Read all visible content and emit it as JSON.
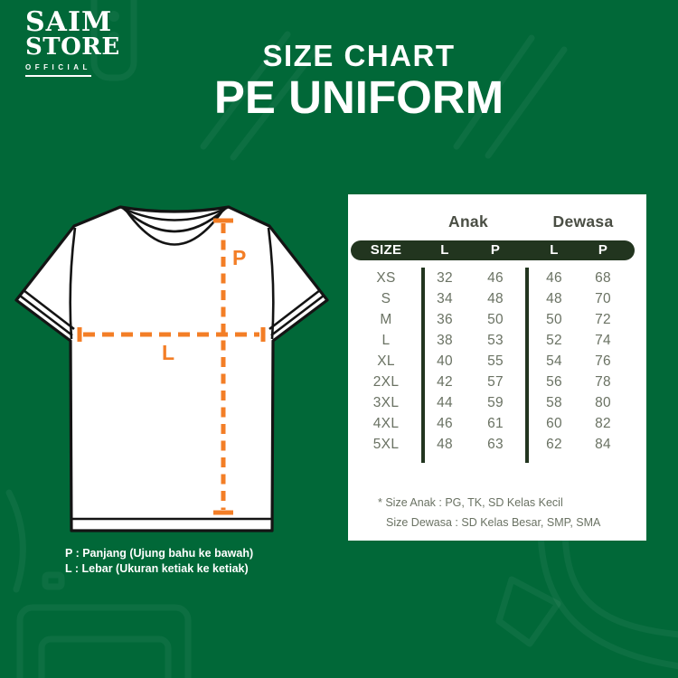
{
  "brand": {
    "line1": "SAIM",
    "line2": "STORE",
    "line3": "OFFICIAL"
  },
  "title": {
    "line1": "SIZE CHART",
    "line2": "PE UNIFORM"
  },
  "diagram": {
    "p_label": "P",
    "l_label": "L"
  },
  "legend": {
    "line1": "P : Panjang (Ujung bahu ke bawah)",
    "line2": "L : Lebar (Ukuran ketiak ke ketiak)"
  },
  "table": {
    "group_headers": [
      "Anak",
      "Dewasa"
    ],
    "header": [
      "SIZE",
      "L",
      "P",
      "L",
      "P"
    ],
    "rows": [
      [
        "XS",
        "32",
        "46",
        "46",
        "68"
      ],
      [
        "S",
        "34",
        "48",
        "48",
        "70"
      ],
      [
        "M",
        "36",
        "50",
        "50",
        "72"
      ],
      [
        "L",
        "38",
        "53",
        "52",
        "74"
      ],
      [
        "XL",
        "40",
        "55",
        "54",
        "76"
      ],
      [
        "2XL",
        "42",
        "57",
        "56",
        "78"
      ],
      [
        "3XL",
        "44",
        "59",
        "58",
        "80"
      ],
      [
        "4XL",
        "46",
        "61",
        "60",
        "82"
      ],
      [
        "5XL",
        "48",
        "63",
        "62",
        "84"
      ]
    ],
    "notes": [
      "* Size Anak : PG, TK, SD Kelas Kecil",
      "Size Dewasa : SD Kelas Besar, SMP, SMA"
    ]
  },
  "colors": {
    "background": "#016838",
    "table_pill": "#22351f",
    "measure_orange": "#f37e26",
    "table_text": "#6a7263",
    "group_header_text": "#4a4e44",
    "card": "#ffffff"
  }
}
